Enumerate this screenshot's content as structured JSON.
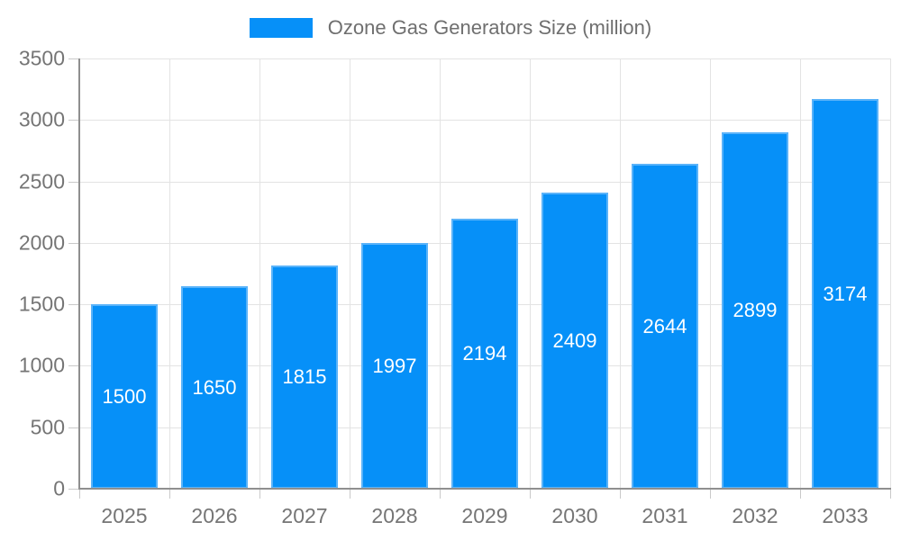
{
  "legend": {
    "label": "Ozone Gas Generators Size (million)"
  },
  "chart_data": {
    "type": "bar",
    "title": "Ozone Gas Generators Size (million)",
    "categories": [
      "2025",
      "2026",
      "2027",
      "2028",
      "2029",
      "2030",
      "2031",
      "2032",
      "2033"
    ],
    "values": [
      1500,
      1650,
      1815,
      1997,
      2194,
      2409,
      2644,
      2899,
      3174
    ],
    "series": [
      {
        "name": "Ozone Gas Generators Size (million)",
        "values": [
          1500,
          1650,
          1815,
          1997,
          2194,
          2409,
          2644,
          2899,
          3174
        ]
      }
    ],
    "xlabel": "",
    "ylabel": "",
    "ylim": [
      0,
      3500
    ],
    "ytick_step": 500,
    "yticks": [
      0,
      500,
      1000,
      1500,
      2000,
      2500,
      3000,
      3500
    ],
    "grid": true,
    "legend_position": "top",
    "value_labels": "inside-center",
    "colors": {
      "bar": "#0690f8",
      "bar_border": "#5ab3f9",
      "grid": "#e3e3e3",
      "axis_line": "#8f8f8f",
      "tick": "#c9c9c9",
      "axis_text": "#757575",
      "legend_text": "#6f6f6f",
      "value_label_text": "#ffffff",
      "background": "#ffffff"
    }
  }
}
